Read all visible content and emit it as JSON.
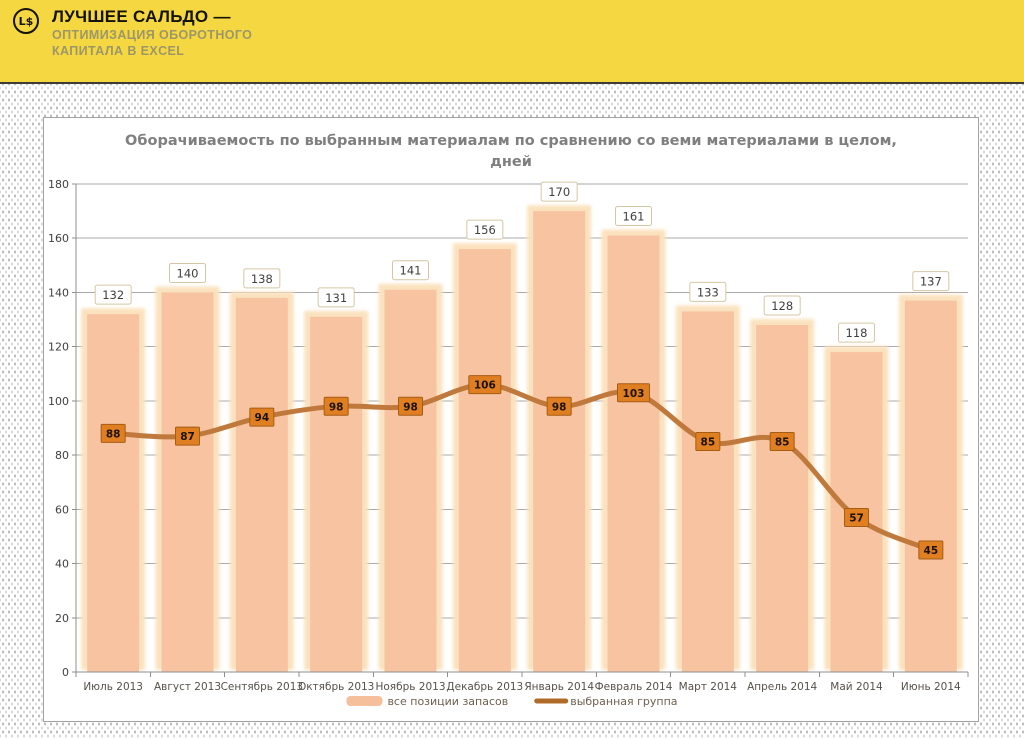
{
  "header": {
    "logo_text": "L$",
    "brand_title": "ЛУЧШЕЕ САЛЬДО —",
    "brand_subtitle_line1": "ОПТИМИЗАЦИЯ ОБОРОТНОГО",
    "brand_subtitle_line2": "КАПИТАЛА В EXCEL"
  },
  "chart_data": {
    "type": "bar",
    "title_line1": "Оборачиваемость по выбранным материалам по сравнению со веми материалами в целом,",
    "title_line2": "дней",
    "categories": [
      "Июль 2013",
      "Август 2013",
      "Сентябрь 2013",
      "Октябрь 2013",
      "Ноябрь 2013",
      "Декабрь 2013",
      "Январь 2014",
      "Февраль 2014",
      "Март 2014",
      "Апрель 2014",
      "Май 2014",
      "Июнь 2014"
    ],
    "series": [
      {
        "name": "все позиции запасов",
        "type": "bar",
        "values": [
          132,
          140,
          138,
          131,
          141,
          156,
          170,
          161,
          133,
          128,
          118,
          137
        ]
      },
      {
        "name": "выбранная группа",
        "type": "line",
        "values": [
          88,
          87,
          94,
          98,
          98,
          106,
          98,
          103,
          85,
          85,
          57,
          45
        ]
      }
    ],
    "ylim": [
      0,
      180
    ],
    "ytick_step": 20,
    "grid": true,
    "legend_position": "bottom",
    "colors": {
      "bar_fill": "#F7C3A1",
      "bar_halo": "#FBE2BE",
      "bar_label_border": "#D4C6A4",
      "bar_label_text": "#3f3f3f",
      "line": "#C0793C",
      "marker_fill": "#E07E22",
      "marker_border": "#A55D14",
      "marker_text": "#1c1206",
      "grid": "#a9a9a9",
      "axis": "#8f8f8f",
      "y_label": "#3f3f3f",
      "x_label": "#55504a",
      "legend_text": "#6e6051",
      "legend_bar_swatch": "#F5BF9C",
      "legend_line_swatch": "#B06B2B"
    }
  }
}
